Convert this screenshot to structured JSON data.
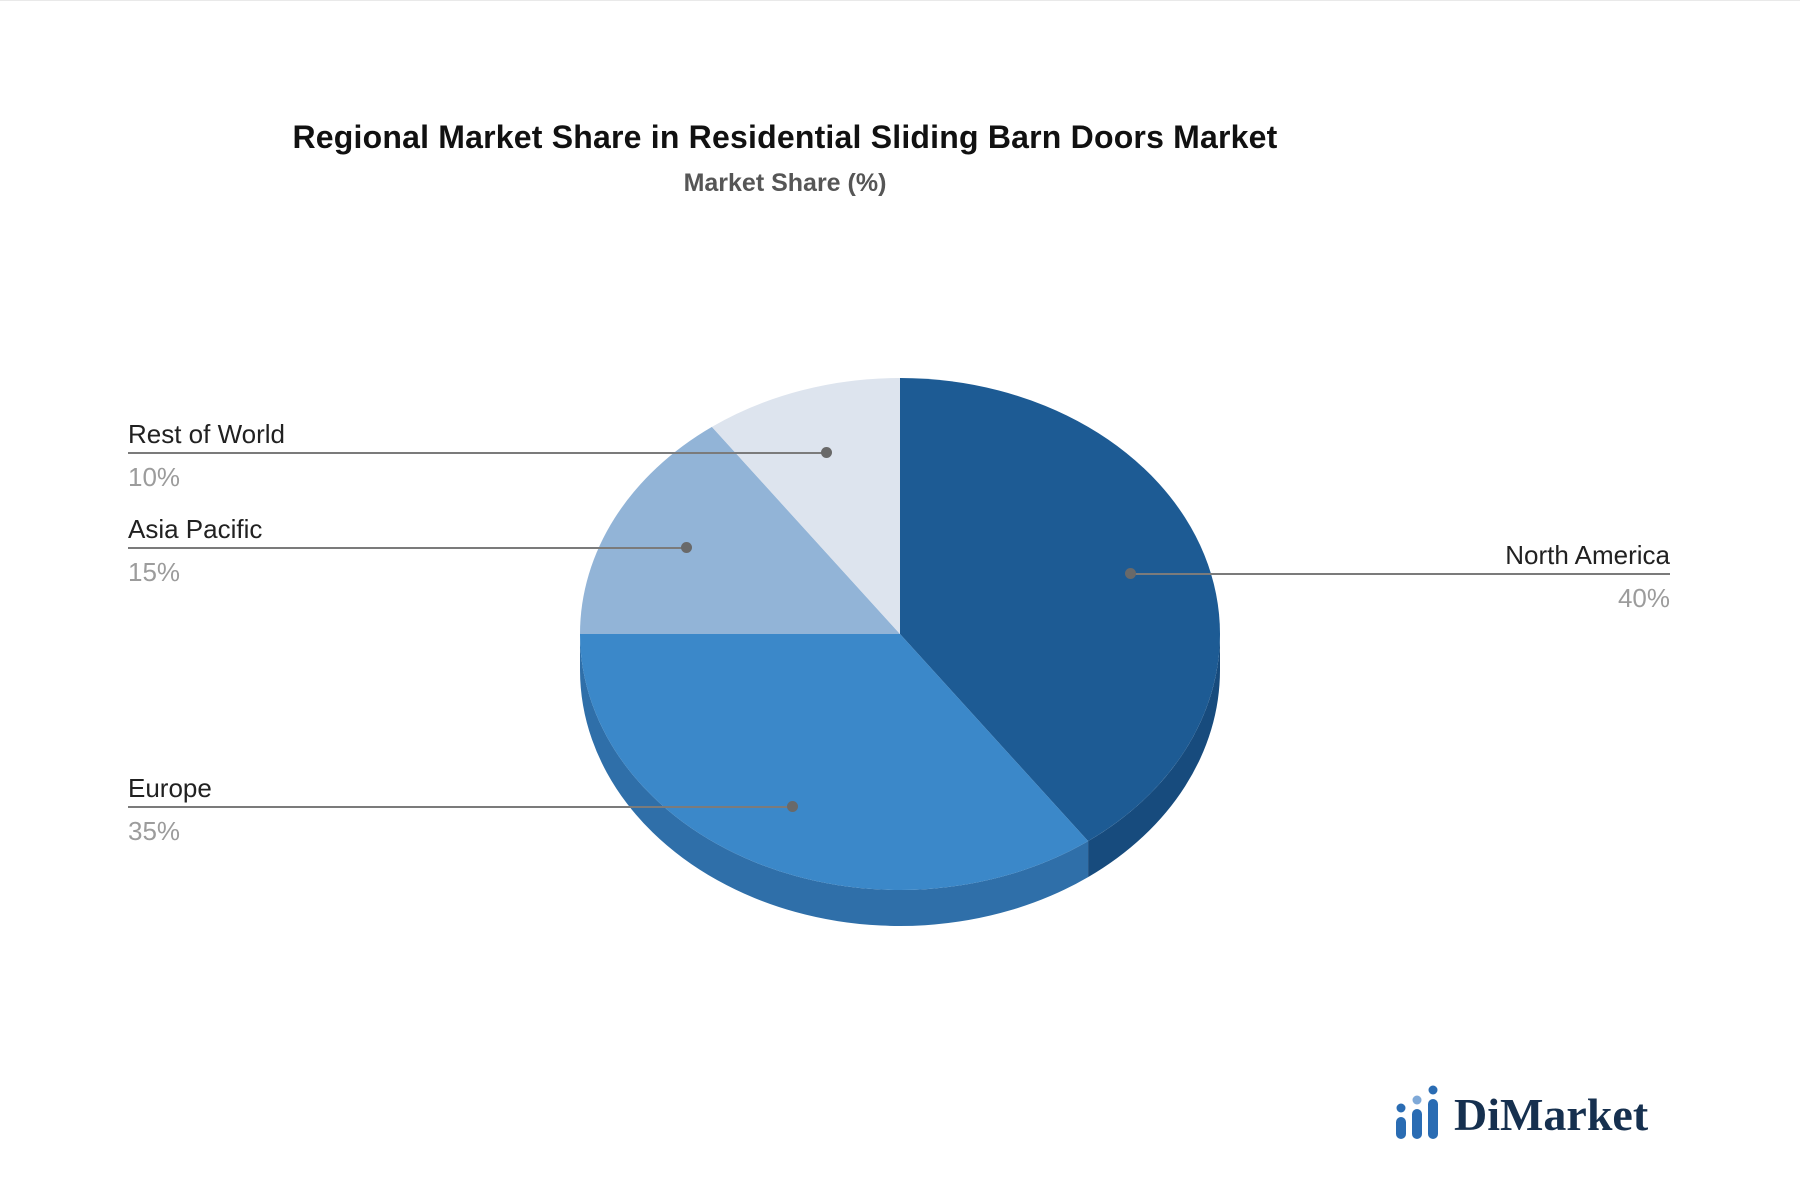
{
  "title": "Regional Market Share in Residential Sliding Barn Doors Market",
  "subtitle": "Market Share (%)",
  "chart_data": {
    "type": "pie",
    "effect": "3d",
    "start_angle_deg": 0,
    "direction": "clockwise",
    "labels": [
      "North America",
      "Europe",
      "Asia Pacific",
      "Rest of World"
    ],
    "values": [
      40,
      35,
      15,
      10
    ],
    "display_percents": [
      "40%",
      "35%",
      "15%",
      "10%"
    ],
    "colors": [
      "#1d5b94",
      "#3b88c9",
      "#92b4d7",
      "#dde4ee"
    ],
    "side_colors": [
      "#174b7d",
      "#2f6fa9",
      "#7ba2c7",
      "#c3cedd"
    ],
    "legend": "callout-labels",
    "grid": false
  },
  "logo": {
    "text": "DiMarket",
    "icon": "bar-chart-icon",
    "icon_color": "#2a6cb3",
    "icon_accent": "#7fa9d8"
  }
}
